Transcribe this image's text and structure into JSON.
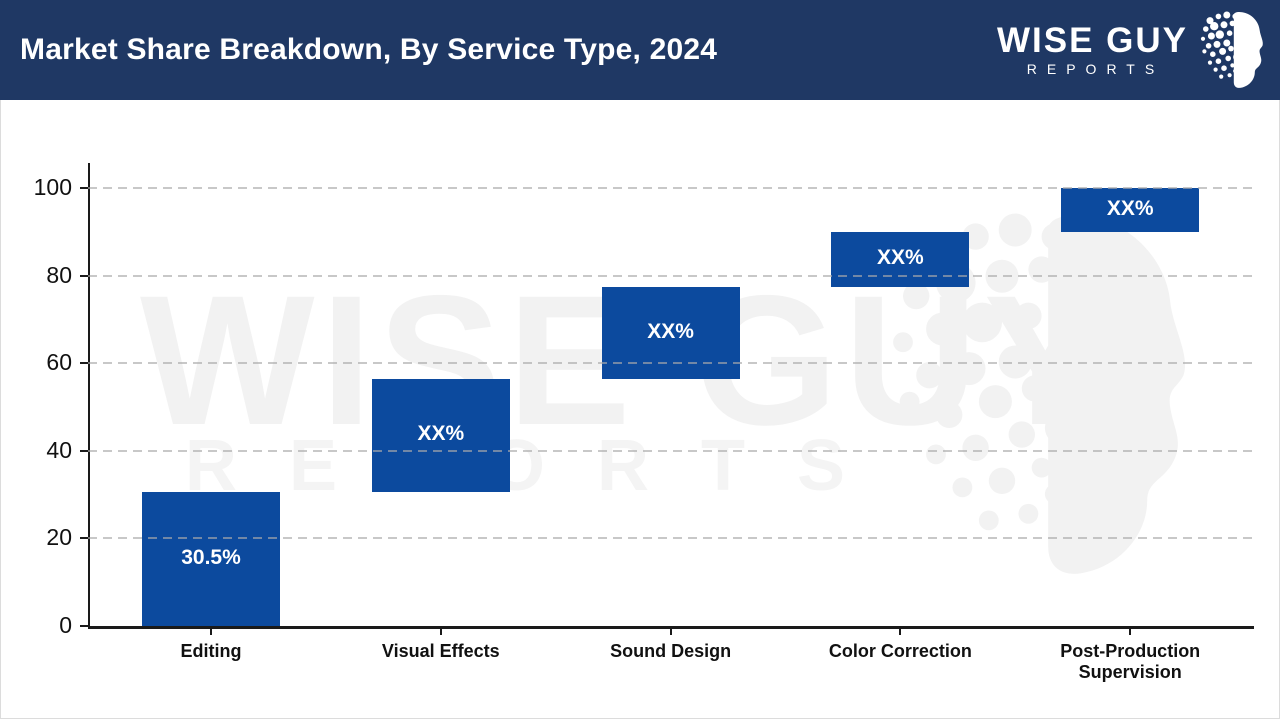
{
  "header": {
    "title": "Market Share Breakdown, By Service Type, 2024",
    "bg_color": "#1f3864",
    "logo": {
      "line1": "WISE GUY",
      "line2": "REPORTS"
    }
  },
  "watermark": {
    "line1": "WISE GUY",
    "line2": "REPORTS"
  },
  "chart_data": {
    "type": "bar",
    "subtype": "waterfall",
    "title": "Market Share Breakdown, By Service Type, 2024",
    "categories": [
      "Editing",
      "Visual Effects",
      "Sound Design",
      "Color Correction",
      "Post-Production Supervision"
    ],
    "segments": [
      {
        "category": "Editing",
        "start": 0,
        "end": 30.5,
        "label": "30.5%"
      },
      {
        "category": "Visual Effects",
        "start": 30.5,
        "end": 56.5,
        "label": "XX%"
      },
      {
        "category": "Sound Design",
        "start": 56.5,
        "end": 77.5,
        "label": "XX%"
      },
      {
        "category": "Color Correction",
        "start": 77.5,
        "end": 90,
        "label": "XX%"
      },
      {
        "category": "Post-Production Supervision",
        "start": 90,
        "end": 100,
        "label": "XX%"
      }
    ],
    "y_ticks": [
      0,
      20,
      40,
      60,
      80,
      100
    ],
    "ylim": [
      0,
      105
    ],
    "xlabel": "",
    "ylabel": "",
    "grid": "horizontal-dashed",
    "legend": "none",
    "bar_color": "#0c4a9e",
    "bar_label_color": "#ffffff"
  }
}
